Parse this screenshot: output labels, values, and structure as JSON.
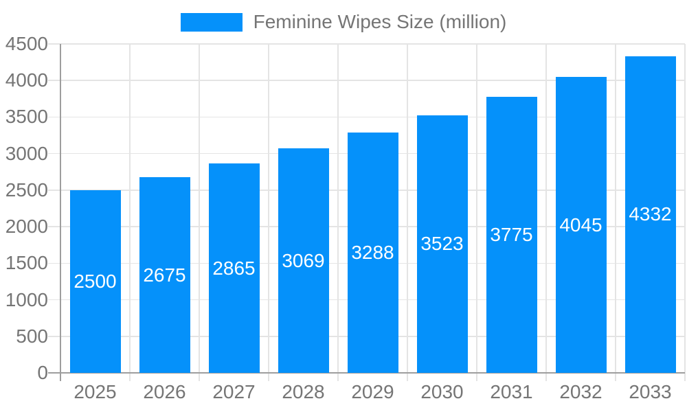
{
  "legend": {
    "label": "Feminine Wipes Size (million)"
  },
  "chart_data": {
    "type": "bar",
    "title": "",
    "categories": [
      "2025",
      "2026",
      "2027",
      "2028",
      "2029",
      "2030",
      "2031",
      "2032",
      "2033"
    ],
    "series": [
      {
        "name": "Feminine Wipes Size (million)",
        "values": [
          2500,
          2675,
          2865,
          3069,
          3288,
          3523,
          3775,
          4045,
          4332
        ]
      }
    ],
    "bar_value_labels": [
      "2500",
      "2675",
      "2865",
      "3069",
      "3288",
      "3523",
      "3775",
      "4045",
      "4332"
    ],
    "y_tick_labels": [
      "0",
      "500",
      "1000",
      "1500",
      "2000",
      "2500",
      "3000",
      "3500",
      "4000",
      "4500"
    ],
    "xlabel": "",
    "ylabel": "",
    "ylim": [
      0,
      4500
    ],
    "ytick_step": 500,
    "grid": true,
    "legend_position": "top-center",
    "colors": {
      "bar": "#0591fa",
      "grid": "#e4e4e4",
      "axis": "#9e9e9e",
      "tick_label": "#757575",
      "bar_label": "#ffffff",
      "background": "#ffffff"
    }
  }
}
